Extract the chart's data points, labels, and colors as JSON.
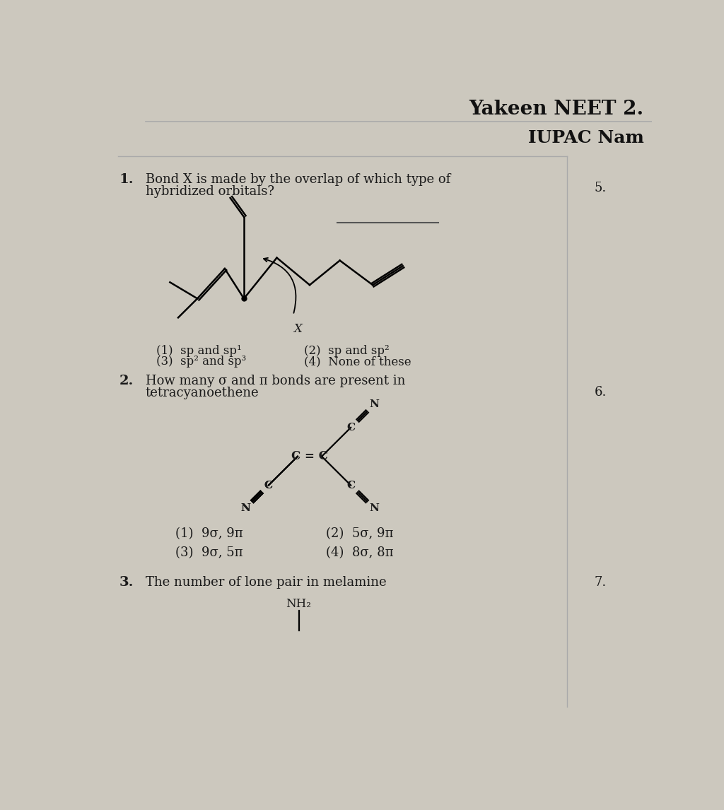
{
  "bg_color": "#ccc8be",
  "title1": "Yakeen NEET 2.",
  "title2": "IUPAC Nam",
  "q1_number": "1.",
  "q1_text_line1": "Bond X is made by the overlap of which type of",
  "q1_text_line2": "hybridized orbitals?",
  "q1_opt1": "(1)  sp and sp¹",
  "q1_opt2": "(2)  sp and sp²",
  "q1_opt3": "(3)  sp² and sp³",
  "q1_opt4": "(4)  None of these",
  "q2_number": "2.",
  "q2_text_line1": "How many σ and π bonds are present in",
  "q2_text_line2": "tetracyanoethene",
  "q2_opt1": "(1)  9σ, 9π",
  "q2_opt2": "(2)  5σ, 9π",
  "q2_opt3": "(3)  9σ, 5π",
  "q2_opt4": "(4)  8σ, 8π",
  "q3_number": "3.",
  "q3_text": "The number of lone pair in melamine",
  "q3_nh2": "NH₂",
  "side_5": "5.",
  "side_6": "6.",
  "side_7": "7.",
  "font_color": "#1a1a1a",
  "line_color": "#888880",
  "header_line_color": "#aaaaaa",
  "title_color": "#111111"
}
